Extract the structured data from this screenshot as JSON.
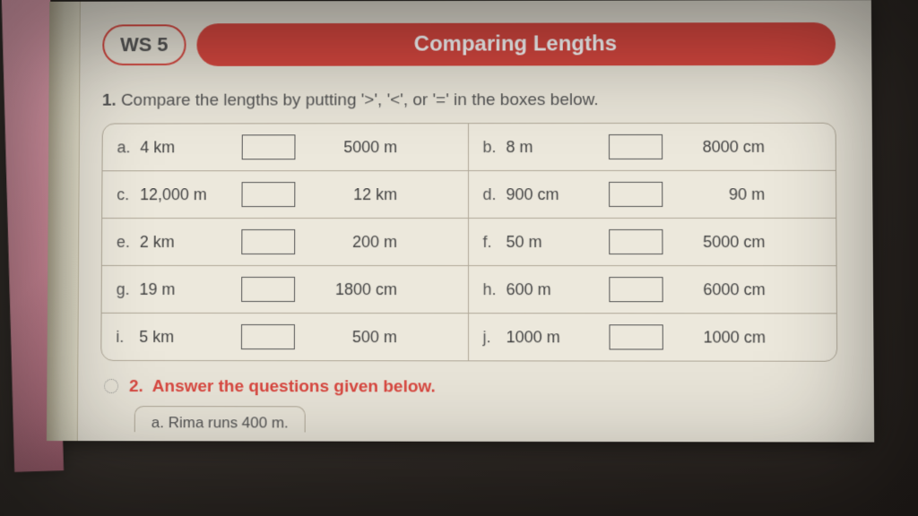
{
  "header": {
    "badge": "WS 5",
    "title": "Comparing Lengths"
  },
  "q1": {
    "number": "1.",
    "text": "Compare the lengths by putting '>', '<', or '=' in the boxes below.",
    "rows": [
      {
        "l": {
          "letter": "a.",
          "left": "4 km",
          "right": "5000 m"
        },
        "r": {
          "letter": "b.",
          "left": "8 m",
          "right": "8000 cm"
        }
      },
      {
        "l": {
          "letter": "c.",
          "left": "12,000 m",
          "right": "12 km"
        },
        "r": {
          "letter": "d.",
          "left": "900 cm",
          "right": "90 m"
        }
      },
      {
        "l": {
          "letter": "e.",
          "left": "2 km",
          "right": "200 m"
        },
        "r": {
          "letter": "f.",
          "left": "50 m",
          "right": "5000 cm"
        }
      },
      {
        "l": {
          "letter": "g.",
          "left": "19 m",
          "right": "1800 cm"
        },
        "r": {
          "letter": "h.",
          "left": "600 m",
          "right": "6000 cm"
        }
      },
      {
        "l": {
          "letter": "i.",
          "left": "5 km",
          "right": "500 m"
        },
        "r": {
          "letter": "j.",
          "left": "1000 m",
          "right": "1000 cm"
        }
      }
    ]
  },
  "q2": {
    "number": "2.",
    "text": "Answer the questions given below.",
    "sub_letter": "a.",
    "sub_text": "Rima runs 400 m."
  },
  "colors": {
    "accent": "#d84840",
    "paper": "#e8e4d8",
    "border": "#b0a898",
    "text": "#555"
  }
}
